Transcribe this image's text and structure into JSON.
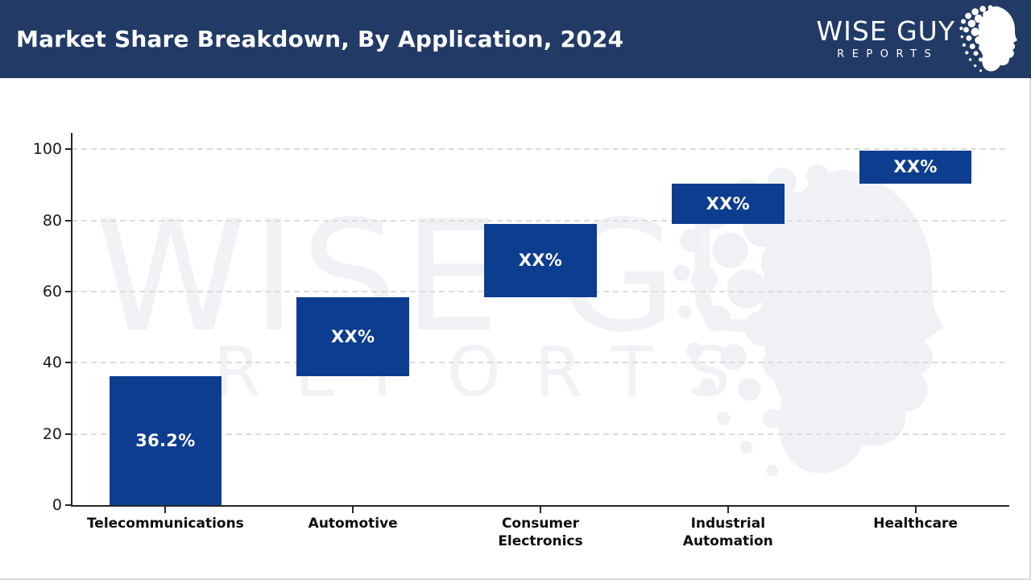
{
  "header": {
    "title": "Market Share Breakdown, By Application, 2024",
    "logo": {
      "line1": "WISE GUY",
      "line2": "REPORTS"
    }
  },
  "watermark": {
    "line1": "WISE GUY",
    "line2": "REPORTS"
  },
  "chart_data": {
    "type": "bar",
    "subtype": "waterfall",
    "title": "Market Share Breakdown, By Application, 2024",
    "categories": [
      "Telecommunications",
      "Automotive",
      "Consumer\nElectronics",
      "Industrial\nAutomation",
      "Healthcare"
    ],
    "segments": [
      {
        "category": "Telecommunications",
        "start": 0,
        "end": 36.2,
        "label": "36.2%"
      },
      {
        "category": "Automotive",
        "start": 36.2,
        "end": 58.5,
        "label": "XX%"
      },
      {
        "category": "Consumer Electronics",
        "start": 58.5,
        "end": 79.0,
        "label": "XX%"
      },
      {
        "category": "Industrial Automation",
        "start": 79.0,
        "end": 90.3,
        "label": "XX%"
      },
      {
        "category": "Healthcare",
        "start": 90.3,
        "end": 99.6,
        "label": "XX%"
      }
    ],
    "yticks": [
      0,
      20,
      40,
      60,
      80,
      100
    ],
    "ylim": [
      0,
      104.5
    ],
    "xlabel": "",
    "ylabel": "",
    "grid": "dashed-horizontal",
    "legend": "none",
    "bar_color": "#0d3d8f",
    "bar_label_color": "#ffffff",
    "axis_color": "#262626",
    "header_color": "#213a66"
  }
}
